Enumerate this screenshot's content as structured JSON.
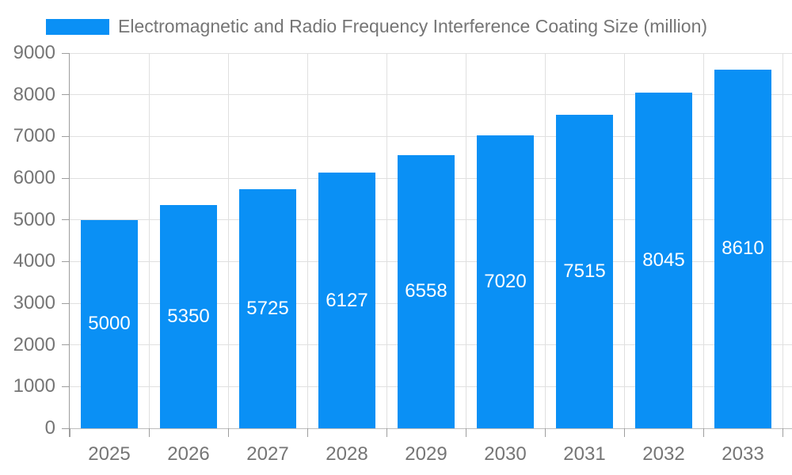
{
  "legend": {
    "label": "Electromagnetic and Radio Frequency Interference Coating Size (million)"
  },
  "chart_data": {
    "type": "bar",
    "title": "Electromagnetic and Radio Frequency Interference Coating Size (million)",
    "categories": [
      "2025",
      "2026",
      "2027",
      "2028",
      "2029",
      "2030",
      "2031",
      "2032",
      "2033"
    ],
    "series": [
      {
        "name": "Electromagnetic and Radio Frequency Interference Coating Size (million)",
        "values": [
          5000,
          5350,
          5725,
          6127,
          6558,
          7020,
          7515,
          8045,
          8610
        ]
      }
    ],
    "value_labels_inside_bars": true,
    "xlabel": "",
    "ylabel": "",
    "ylim": [
      0,
      9000
    ],
    "ytick_step": 1000,
    "yticks": [
      0,
      1000,
      2000,
      3000,
      4000,
      5000,
      6000,
      7000,
      8000,
      9000
    ],
    "grid": true,
    "legend_position": "top-left",
    "colors": {
      "bar": "#0A90F5",
      "bar_label_text": "#FFFFFF",
      "axis_text": "#757575",
      "gridline": "#E0E0E0",
      "zero_line": "#BDBDBD",
      "axis_line": "#9E9E9E"
    }
  }
}
